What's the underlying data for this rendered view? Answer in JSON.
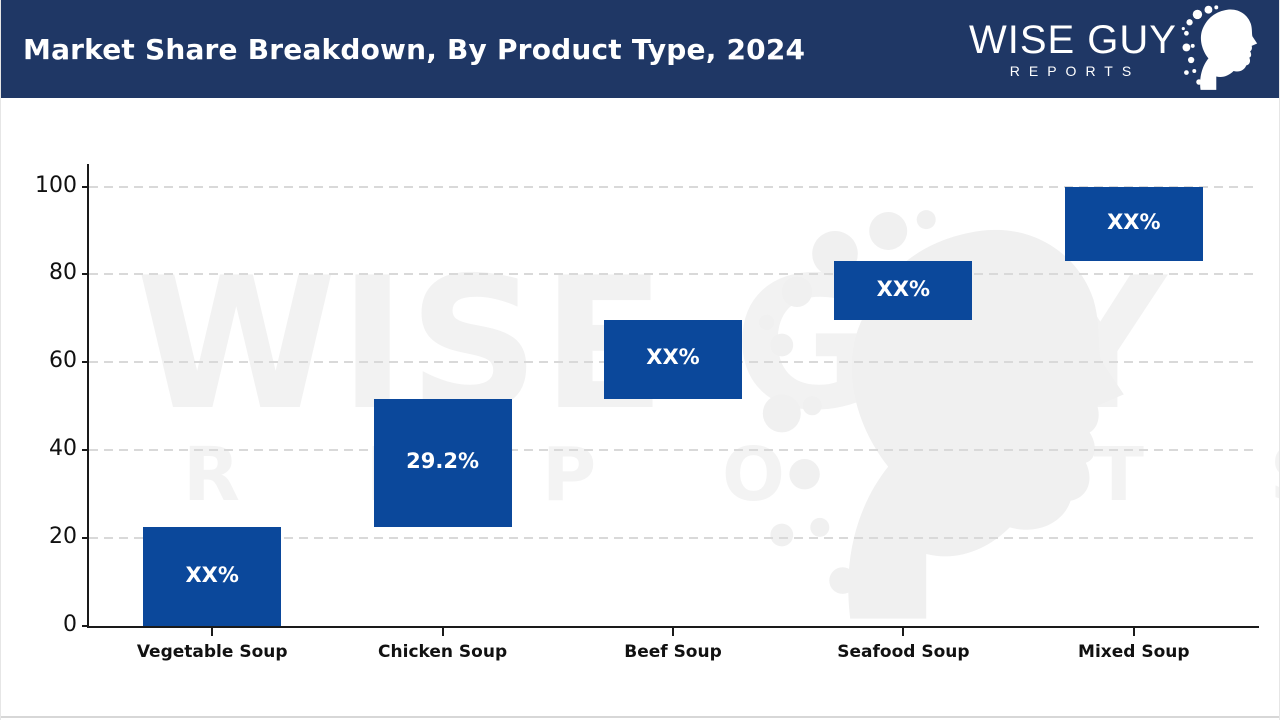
{
  "header": {
    "title": "Market Share Breakdown, By Product Type, 2024",
    "logo": {
      "line1": "WISE GUY",
      "line2": "REPORTS"
    }
  },
  "watermark": {
    "line1": "WISE GUY",
    "line2": "R E P O R T S"
  },
  "chart_data": {
    "type": "bar",
    "subtype": "floating-waterfall",
    "title": "Market Share Breakdown, By Product Type, 2024",
    "xlabel": "",
    "ylabel": "",
    "categories": [
      "Vegetable Soup",
      "Chicken Soup",
      "Beef Soup",
      "Seafood Soup",
      "Mixed Soup"
    ],
    "bars": [
      {
        "category": "Vegetable Soup",
        "start": 0,
        "end": 22.5,
        "label": "XX%"
      },
      {
        "category": "Chicken Soup",
        "start": 22.5,
        "end": 51.7,
        "label": "29.2%"
      },
      {
        "category": "Beef Soup",
        "start": 51.7,
        "end": 69.6,
        "label": "XX%"
      },
      {
        "category": "Seafood Soup",
        "start": 69.6,
        "end": 83.0,
        "label": "XX%"
      },
      {
        "category": "Mixed Soup",
        "start": 83.0,
        "end": 100,
        "label": "XX%"
      }
    ],
    "yticks": [
      0,
      20,
      40,
      60,
      80,
      100
    ],
    "ylim": [
      0,
      105
    ],
    "grid": "horizontal-dashed",
    "legend_position": "none",
    "bar_color": "#0b489b",
    "colors": {
      "header_background": "#1f3765",
      "title_text": "#ffffff",
      "bar_label_text": "#ffffff",
      "axis": "#1a1a1a",
      "gridline": "#d9d9d9",
      "watermark": "#f2f2f2"
    }
  }
}
